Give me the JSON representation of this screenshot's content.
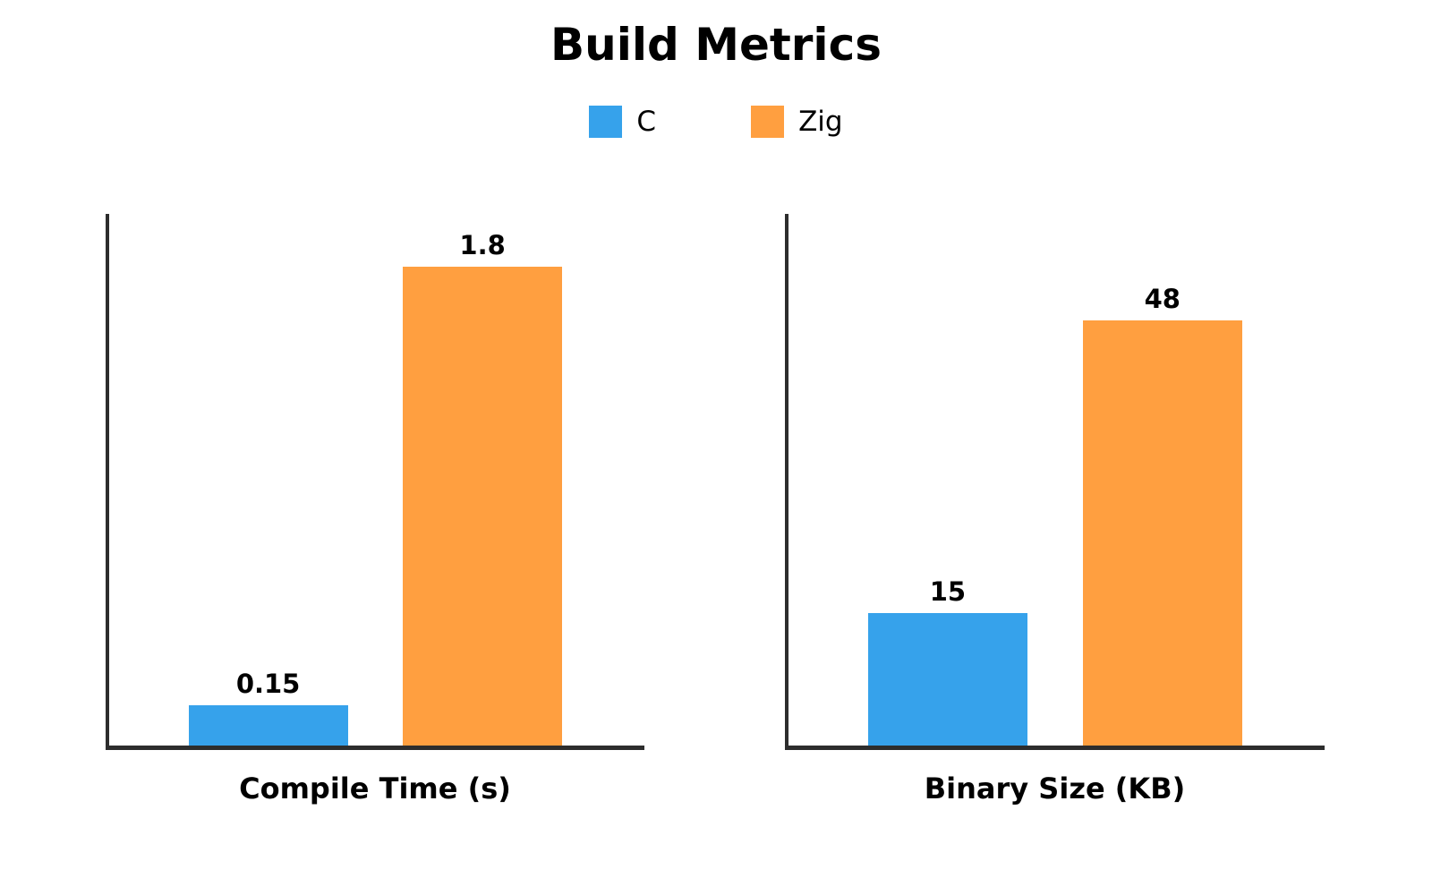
{
  "title": "Build Metrics",
  "legend": {
    "position": "top-center",
    "items": [
      {
        "label": "C",
        "color": "#36A2EB"
      },
      {
        "label": "Zig",
        "color": "#FF9F40"
      }
    ]
  },
  "chart_data": [
    {
      "type": "bar",
      "title": "",
      "xlabel": "Compile Time (s)",
      "ylabel": "",
      "categories": [
        "C",
        "Zig"
      ],
      "values": [
        0.15,
        1.8
      ],
      "value_labels": [
        "0.15",
        "1.8"
      ],
      "bar_colors": [
        "#36A2EB",
        "#FF9F40"
      ],
      "ylim": [
        0,
        2.0
      ],
      "grid": false,
      "yticks": "none",
      "legend_position": "figure-top"
    },
    {
      "type": "bar",
      "title": "",
      "xlabel": "Binary Size (KB)",
      "ylabel": "",
      "categories": [
        "C",
        "Zig"
      ],
      "values": [
        15,
        48
      ],
      "value_labels": [
        "15",
        "48"
      ],
      "bar_colors": [
        "#36A2EB",
        "#FF9F40"
      ],
      "ylim": [
        0,
        60
      ],
      "grid": false,
      "yticks": "none",
      "legend_position": "figure-top"
    }
  ],
  "style": {
    "series_c_color": "#36A2EB",
    "series_zig_color": "#FF9F40",
    "axis_color": "#2d2d2d",
    "background": "#ffffff",
    "text_color": "#000000"
  }
}
